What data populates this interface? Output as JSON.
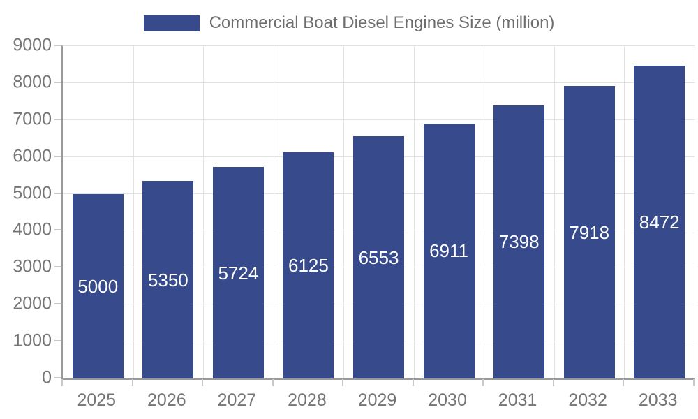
{
  "legend": {
    "label": "Commercial Boat Diesel Engines Size (million)"
  },
  "chart_data": {
    "type": "bar",
    "title": "Commercial Boat Diesel Engines Size (million)",
    "categories": [
      "2025",
      "2026",
      "2027",
      "2028",
      "2029",
      "2030",
      "2031",
      "2032",
      "2033"
    ],
    "values": [
      5000,
      5350,
      5724,
      6125,
      6553,
      6911,
      7398,
      7918,
      8472
    ],
    "xlabel": "",
    "ylabel": "",
    "ylim": [
      0,
      9000
    ],
    "ytick_step": 1000,
    "yticks": [
      0,
      1000,
      2000,
      3000,
      4000,
      5000,
      6000,
      7000,
      8000,
      9000
    ],
    "grid": true,
    "legend_position": "top",
    "bar_labels_inside": true
  },
  "style": {
    "bar_color": "#374B8C",
    "bar_label_color": "#FFFFFF",
    "legend_text_color": "#6E6E6E",
    "axis_text_color": "#757575",
    "axis_line_color": "#999999",
    "grid_line_color": "#E2E2E2",
    "tick_mark_color": "#C9C9C9",
    "background_color": "#FFFFFF"
  }
}
